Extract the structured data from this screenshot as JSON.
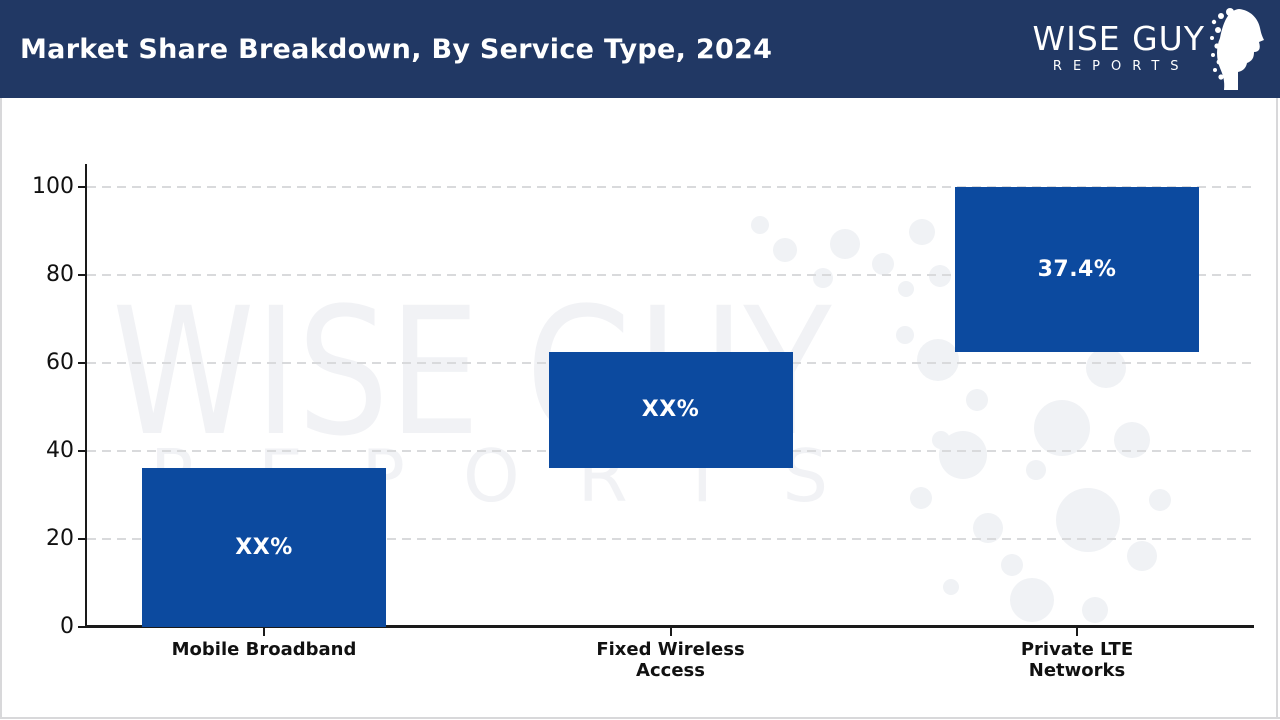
{
  "theme": {
    "header_bg": "#213864",
    "grid_color": "#d9dadc",
    "axis_color": "#1a1a1a",
    "watermark_color": "#f1f2f5"
  },
  "header": {
    "title": "Market Share Breakdown, By Service Type, 2024",
    "logo": {
      "line1": "WISE GUY",
      "line2": "REPORTS"
    }
  },
  "watermark": {
    "line1": "WISE GUY",
    "line2": "REPORTS"
  },
  "chart_data": {
    "type": "bar",
    "subtype": "waterfall-floating-bars",
    "title": "Market Share Breakdown, By Service Type, 2024",
    "xlabel": "",
    "ylabel": "",
    "ylim": [
      0,
      100
    ],
    "yticks": [
      0,
      20,
      40,
      60,
      80,
      100
    ],
    "grid": "horizontal dashed",
    "legend": "none",
    "bar_color": "#0c4a9f",
    "bar_label_color": "#ffffff",
    "segments": [
      {
        "category_lines": [
          "Mobile Broadband"
        ],
        "start": 0,
        "end": 36.2,
        "label": "XX%"
      },
      {
        "category_lines": [
          "Fixed Wireless",
          "Access"
        ],
        "start": 36.2,
        "end": 62.6,
        "label": "XX%"
      },
      {
        "category_lines": [
          "Private LTE",
          "Networks"
        ],
        "start": 62.6,
        "end": 100,
        "label": "37.4%"
      }
    ]
  }
}
